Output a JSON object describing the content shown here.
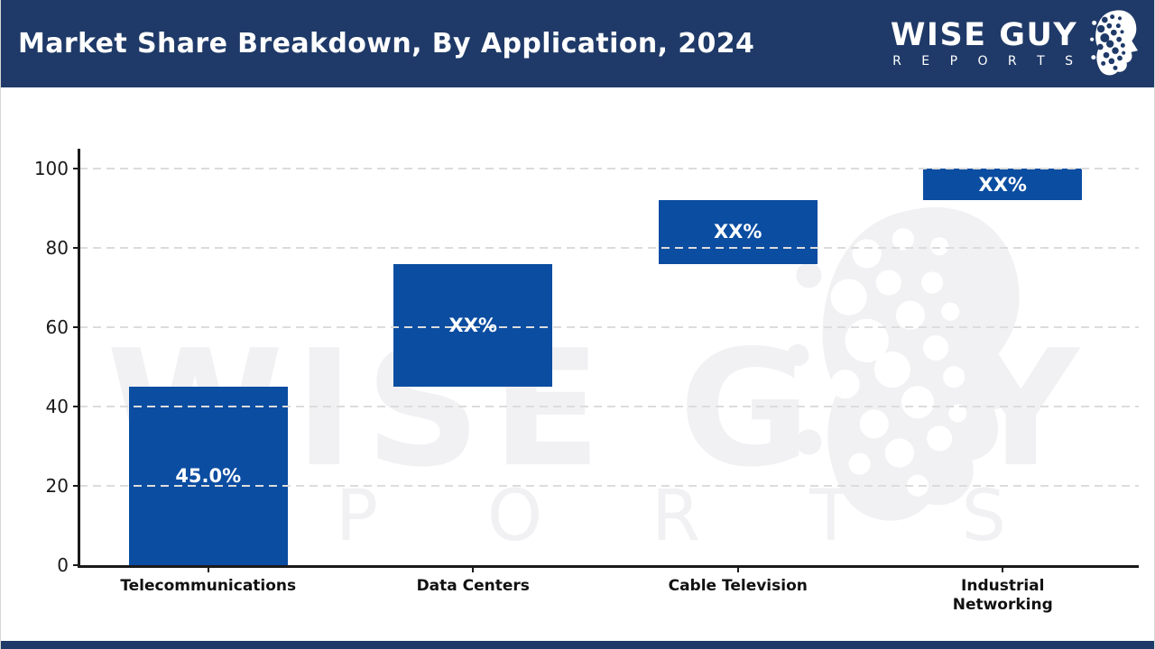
{
  "header": {
    "title": "Market Share Breakdown, By Application, 2024",
    "logo": {
      "wordmark": "WISE GUY",
      "subtext": "R E P O R T S"
    }
  },
  "watermark": {
    "wordmark": "WISE GUY",
    "subtext": "P O R T S"
  },
  "colors": {
    "navy": "#1F3A68",
    "bar_blue": "#0B4DA1",
    "grid_gray": "#DCDCDC",
    "axis_black": "#1A1A1A",
    "watermark_gray": "#F1F1F3"
  },
  "chart_data": {
    "type": "bar",
    "subtype": "floating-waterfall",
    "title": "Market Share Breakdown, By Application, 2024",
    "categories": [
      "Telecommunications",
      "Data Centers",
      "Cable Television",
      "Industrial Networking"
    ],
    "segments": [
      {
        "category": "Telecommunications",
        "start": 0,
        "end": 45,
        "label": "45.0%"
      },
      {
        "category": "Data Centers",
        "start": 45,
        "end": 76,
        "label": "XX%"
      },
      {
        "category": "Cable Television",
        "start": 76,
        "end": 92,
        "label": "XX%"
      },
      {
        "category": "Industrial Networking",
        "start": 92,
        "end": 100,
        "label": "XX%"
      }
    ],
    "xlabel": "",
    "ylabel": "",
    "ylim": [
      0,
      100
    ],
    "yticks": [
      0,
      20,
      40,
      60,
      80,
      100
    ],
    "grid": "horizontal-dashed",
    "legend": "none",
    "bar_label_color": "#FFFFFF"
  }
}
